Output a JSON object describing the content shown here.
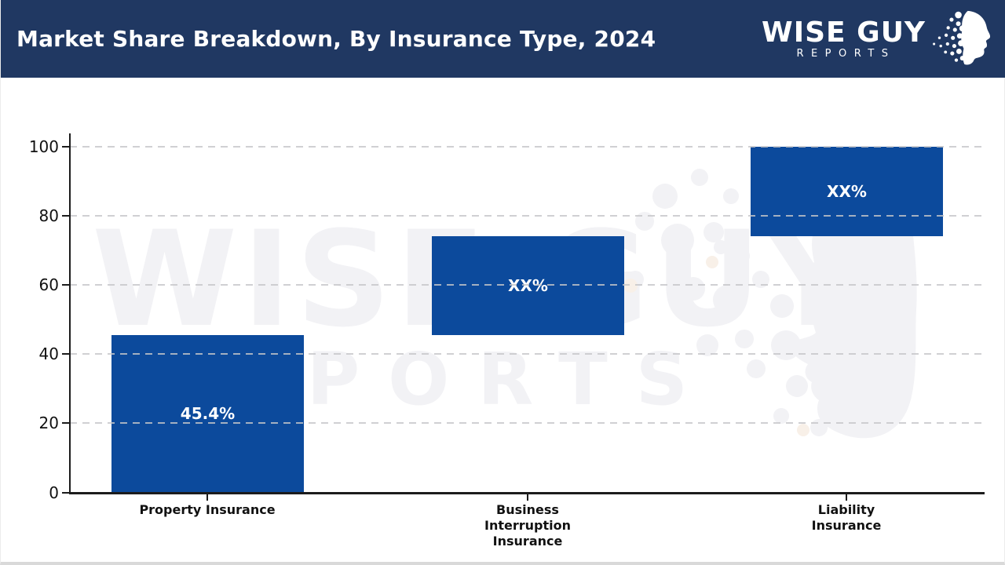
{
  "header": {
    "title": "Market Share Breakdown, By Insurance Type, 2024",
    "brand": {
      "name": "WISE GUY",
      "sub": "REPORTS"
    }
  },
  "watermark": {
    "line1": "WISE GUY",
    "line2": "REPORTS"
  },
  "chart_data": {
    "type": "bar",
    "subtype": "waterfall",
    "title": "Market Share Breakdown, By Insurance Type, 2024",
    "categories": [
      "Property Insurance",
      "Business\nInterruption\nInsurance",
      "Liability\nInsurance"
    ],
    "bars": [
      {
        "category": "Property Insurance",
        "start": 0,
        "end": 45.4,
        "label": "45.4%"
      },
      {
        "category": "Business Interruption Insurance",
        "start": 45.4,
        "end": 74.0,
        "label": "XX%"
      },
      {
        "category": "Liability Insurance",
        "start": 74.0,
        "end": 100.0,
        "label": "XX%"
      }
    ],
    "yticks": [
      0,
      20,
      40,
      60,
      80,
      100
    ],
    "ylim": [
      0,
      100
    ],
    "xlabel": "",
    "ylabel": "",
    "legend": "none",
    "grid": "horizontal-dashed",
    "bar_color": "#0c4a9c",
    "label_color": "#ffffff",
    "axis_color": "#1c1c1c"
  },
  "colors": {
    "header_bg": "#203862",
    "watermark": "#f2f2f5",
    "watermark_accent": "#f8f0e8"
  }
}
